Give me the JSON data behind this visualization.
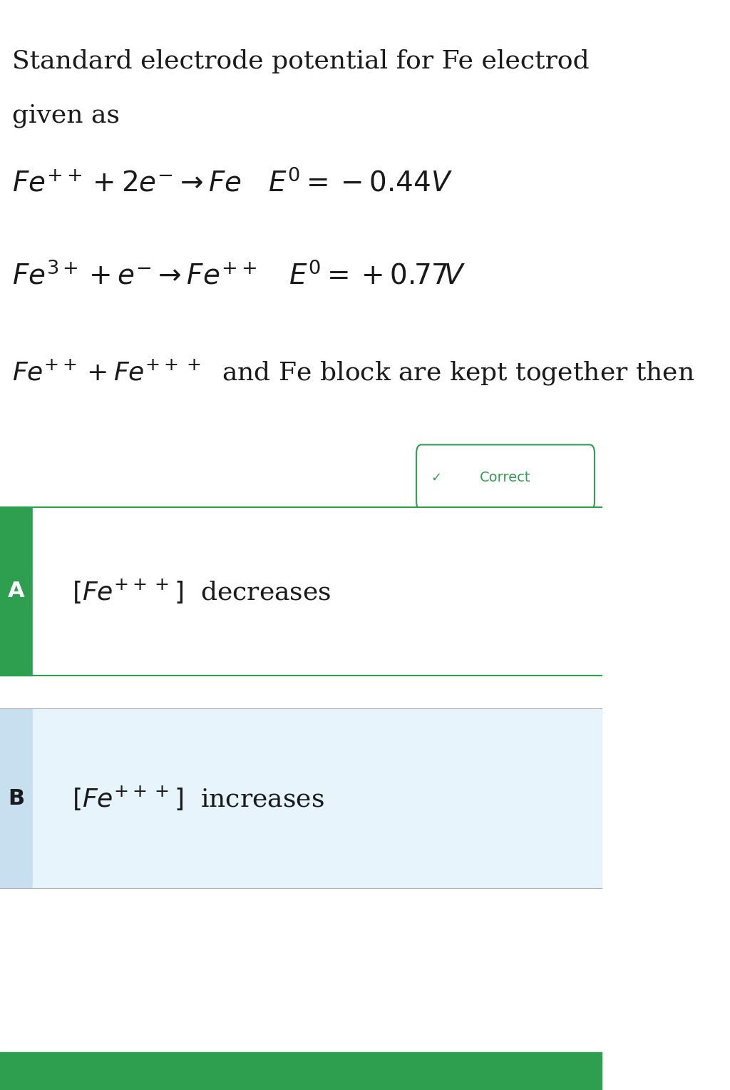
{
  "bg_color": "#ffffff",
  "text_color": "#1a1a1a",
  "line1": "Standard electrode potential for Fe electrod",
  "line2": "given as",
  "correct_color": "#2e9e4f",
  "option_a_label": "A",
  "option_a_color": "#2e9e4f",
  "option_b_label": "B",
  "option_b_color": "#c8dff0",
  "option_b_bg": "#e8f4fc",
  "separator_color": "#2e9e4f",
  "divider_color": "#b0b0b0",
  "bottom_bar_color": "#2e9e4f"
}
